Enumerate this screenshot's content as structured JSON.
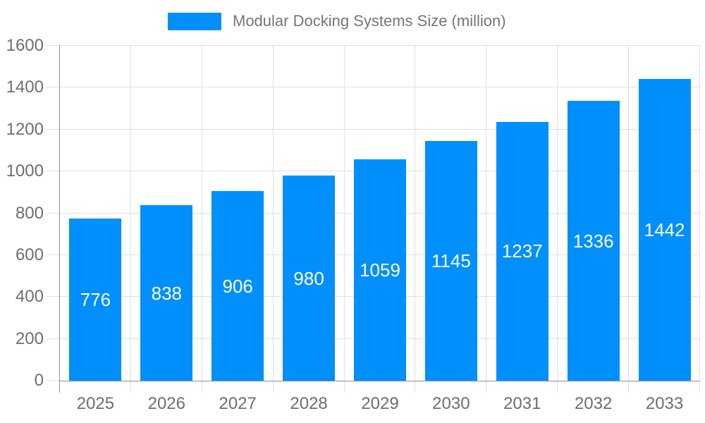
{
  "legend": {
    "label": "Modular Docking Systems Size (million)"
  },
  "chart_data": {
    "type": "bar",
    "title": "Modular Docking Systems Size (million)",
    "categories": [
      "2025",
      "2026",
      "2027",
      "2028",
      "2029",
      "2030",
      "2031",
      "2032",
      "2033"
    ],
    "values": [
      776,
      838,
      906,
      980,
      1059,
      1145,
      1237,
      1336,
      1442
    ],
    "xlabel": "",
    "ylabel": "",
    "ylim": [
      0,
      1600
    ],
    "yticks": [
      0,
      200,
      400,
      600,
      800,
      1000,
      1200,
      1400,
      1600
    ],
    "grid": true,
    "legend_position": "top",
    "value_labels": "inside-center",
    "colors": {
      "bar": "#008FFB",
      "grid": "#e0e0e0",
      "axis_line": "#8e8e8e",
      "axis_text": "#6e6e6e",
      "legend_text": "#757575",
      "value_label_text": "#ffffff",
      "background": "#ffffff"
    }
  }
}
